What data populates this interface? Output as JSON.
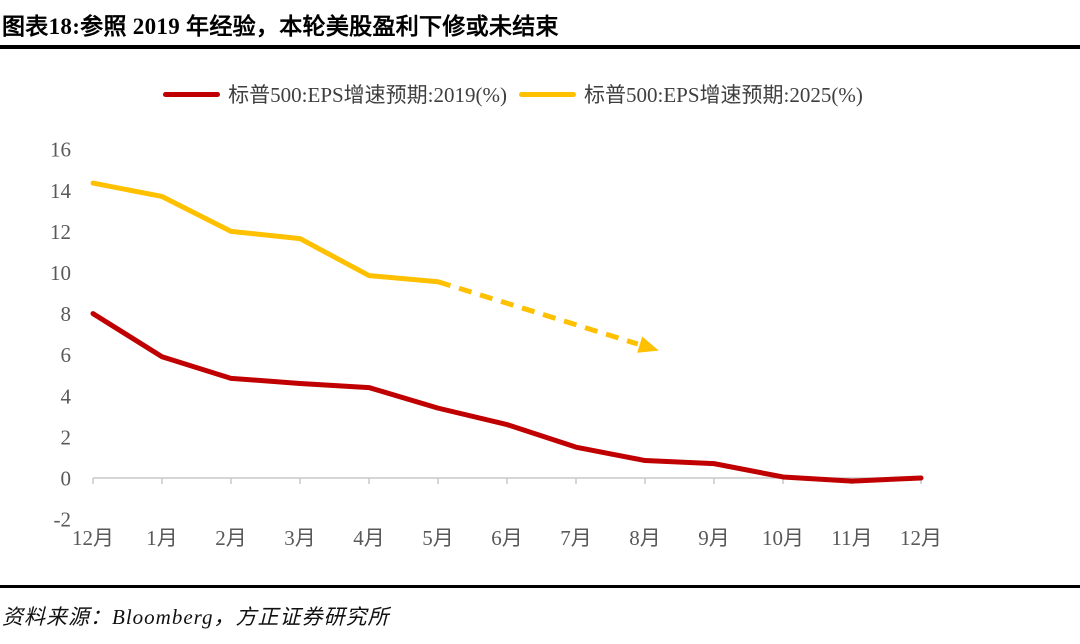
{
  "header": {
    "title": "图表18:参照 2019 年经验，本轮美股盈利下修或未结束"
  },
  "legend": [
    {
      "id": "2019",
      "label": "标普500:EPS增速预期:2019(%)",
      "color": "#C00000"
    },
    {
      "id": "2025",
      "label": "标普500:EPS增速预期:2025(%)",
      "color": "#FFC000"
    }
  ],
  "chart_data": {
    "type": "line",
    "title": "参照 2019 年经验，本轮美股盈利下修或未结束",
    "categories": [
      "12月",
      "1月",
      "2月",
      "3月",
      "4月",
      "5月",
      "6月",
      "7月",
      "8月",
      "9月",
      "10月",
      "11月",
      "12月"
    ],
    "series": [
      {
        "id": "2019",
        "name": "标普500:EPS增速预期:2019(%)",
        "color": "#C00000",
        "style": "solid",
        "values": [
          8.0,
          5.9,
          4.85,
          4.6,
          4.4,
          3.4,
          2.6,
          1.5,
          0.85,
          0.7,
          0.05,
          -0.15,
          0.0
        ]
      },
      {
        "id": "2025",
        "name": "标普500:EPS增速预期:2025(%)",
        "color": "#FFC000",
        "style": "solid",
        "values": [
          14.35,
          13.7,
          12.0,
          11.65,
          9.85,
          9.55,
          null,
          null,
          null,
          null,
          null,
          null,
          null
        ]
      }
    ],
    "projection_arrow": {
      "series": "标普500:EPS增速预期:2025(%)",
      "color": "#FFC000",
      "style": "dashed",
      "from": {
        "index": 5,
        "value": 9.55
      },
      "to": {
        "index": 8.2,
        "value": 6.2
      }
    },
    "yticks": [
      16,
      14,
      12,
      10,
      8,
      6,
      4,
      2,
      0,
      -2
    ],
    "ylim": [
      -2,
      16
    ],
    "grid": false,
    "legend_position": "top",
    "axis": {
      "line_color": "#C9C9C9",
      "label_color": "#595959"
    }
  },
  "footer": {
    "source": "资料来源：Bloomberg，方正证券研究所"
  }
}
